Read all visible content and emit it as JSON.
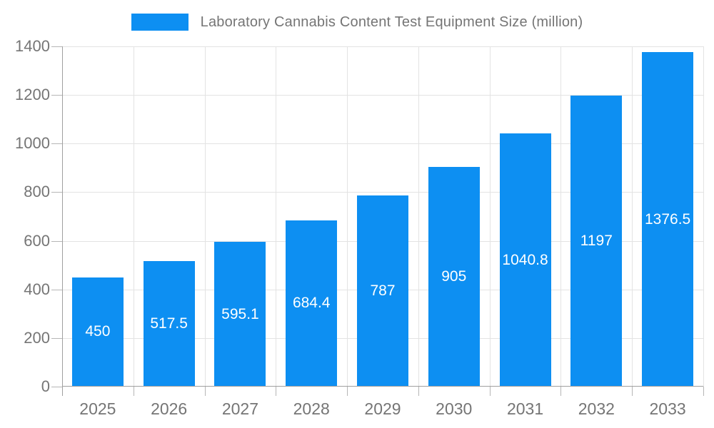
{
  "chart_data": {
    "type": "bar",
    "title": "Laboratory Cannabis Content Test Equipment Size (million)",
    "categories": [
      "2025",
      "2026",
      "2027",
      "2028",
      "2029",
      "2030",
      "2031",
      "2032",
      "2033"
    ],
    "values": [
      450,
      517.5,
      595.1,
      684.4,
      787,
      905,
      1040.8,
      1197,
      1376.5
    ],
    "value_labels": [
      "450",
      "517.5",
      "595.1",
      "684.4",
      "787",
      "905",
      "1040.8",
      "1197",
      "1376.5"
    ],
    "xlabel": "",
    "ylabel": "",
    "ylim": [
      0,
      1400
    ],
    "yticks": [
      0,
      200,
      400,
      600,
      800,
      1000,
      1200,
      1400
    ],
    "grid": "on",
    "legend_position": "top",
    "colors": {
      "bar": "#0d8ff2",
      "bar_value_text": "#ffffff",
      "axis_text": "#757575",
      "legend_text": "#757575",
      "gridline": "#e3e3e3",
      "tick": "#b6b6b6",
      "axis_line": "#a0a0a0",
      "background": "#ffffff"
    }
  }
}
